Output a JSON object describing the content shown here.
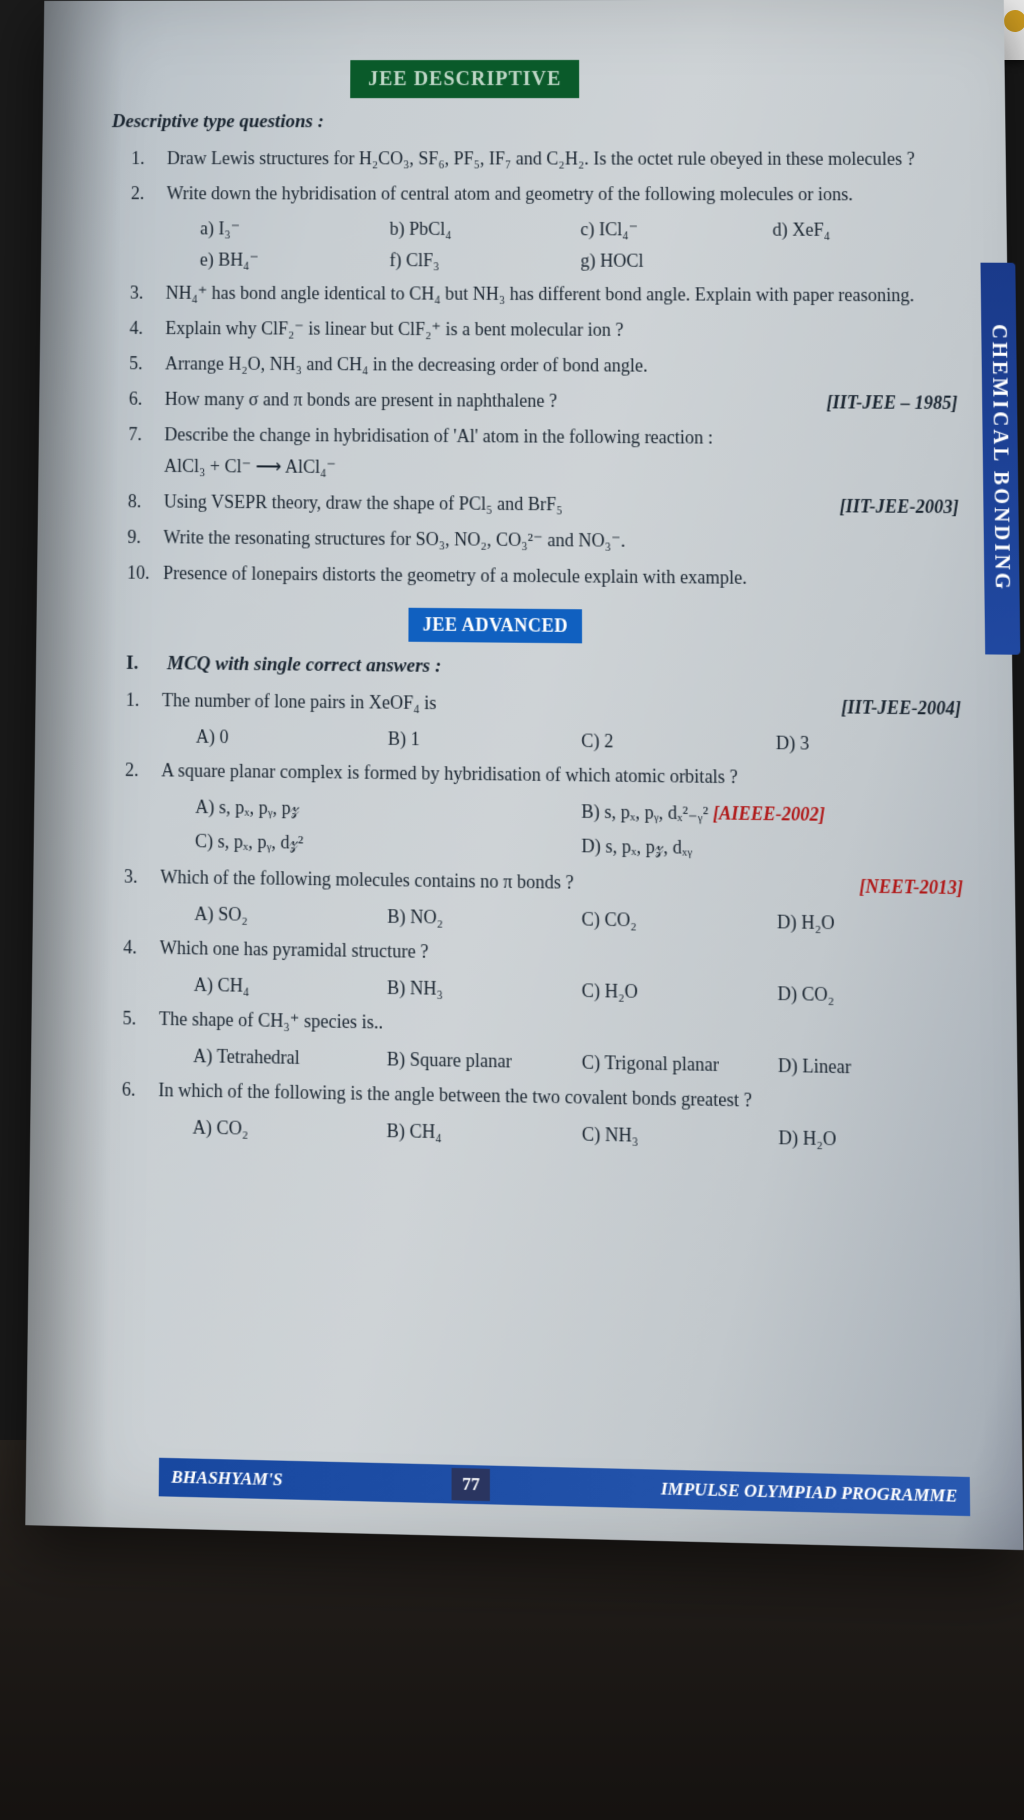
{
  "colors": {
    "badge_green_bg": "#0a5a2a",
    "badge_green_fg": "#c0d8c8",
    "badge_blue_bg": "#1060c0",
    "badge_blue_fg": "#ffffff",
    "footer_bg": "#1848a0",
    "footer_fg": "#ffffff",
    "tag_blue": "#1a2530",
    "tag_red": "#b01818",
    "page_bg": "#c8ced2",
    "text": "#1a2530"
  },
  "typography": {
    "body_fontsize_pt": 14,
    "title_fontsize_pt": 15,
    "font_family": "Georgia serif"
  },
  "header_badge": "JEE DESCRIPTIVE",
  "desc_title": "Descriptive type questions :",
  "side_tab": "CHEMICAL BONDING",
  "descriptive": [
    {
      "n": "1.",
      "text": "Draw Lewis structures for H₂CO₃, SF₆, PF₅, IF₇ and C₂H₂. Is the octet rule obeyed in these molecules ?"
    },
    {
      "n": "2.",
      "text": "Write down the hybridisation of central atom and geometry of the following molecules or ions.",
      "opts": [
        "a)  I₃⁻",
        "b)  PbCl₄",
        "c)  ICl₄⁻",
        "d)  XeF₄",
        "e)  BH₄⁻",
        "f)  ClF₃",
        "g)  HOCl",
        ""
      ]
    },
    {
      "n": "3.",
      "text": "NH₄⁺ has bond angle identical to CH₄ but NH₃ has different bond angle. Explain with paper reasoning."
    },
    {
      "n": "4.",
      "text": "Explain why ClF₂⁻ is linear but ClF₂⁺ is a bent molecular ion ?"
    },
    {
      "n": "5.",
      "text": "Arrange H₂O, NH₃ and CH₄ in the decreasing order of bond angle."
    },
    {
      "n": "6.",
      "text": "How many σ and π bonds are present in naphthalene ?",
      "tag": "[IIT-JEE – 1985]"
    },
    {
      "n": "7.",
      "text": "Describe the change in hybridisation of 'Al' atom in the following reaction :",
      "extra": "AlCl₃ + Cl⁻  ⟶  AlCl₄⁻"
    },
    {
      "n": "8.",
      "text": "Using VSEPR theory, draw the shape of PCl₅ and BrF₅",
      "tag": "[IIT-JEE-2003]"
    },
    {
      "n": "9.",
      "text": "Write the resonating structures for SO₃, NO₂, CO₃²⁻ and NO₃⁻."
    },
    {
      "n": "10.",
      "text": "Presence of lonepairs distorts the geometry of a molecule explain with example."
    }
  ],
  "adv_badge": "JEE ADVANCED",
  "mcq_title": "MCQ with single correct answers :",
  "mcq_roman": "I.",
  "mcq": [
    {
      "n": "1.",
      "q": "The number of lone pairs in XeOF₄ is",
      "tag": "[IIT-JEE-2004]",
      "opts": [
        "A) 0",
        "B) 1",
        "C) 2",
        "D) 3"
      ],
      "cols": 4
    },
    {
      "n": "2.",
      "q": "A square planar complex is formed by hybridisation of which atomic orbitals ?",
      "opts": [
        "A) s, pₓ, pᵧ, p𝓏",
        "B) s, pₓ, pᵧ, dₓ²₋ᵧ²   [AIEEE-2002]",
        "C) s, pₓ, pᵧ, d𝓏²",
        "D) s, pₓ, p𝓏, dₓᵧ"
      ],
      "cols": 2
    },
    {
      "n": "3.",
      "q": "Which of the following molecules contains no π bonds ?",
      "tag": "[NEET-2013]",
      "opts": [
        "A) SO₂",
        "B) NO₂",
        "C) CO₂",
        "D) H₂O"
      ],
      "cols": 4
    },
    {
      "n": "4.",
      "q": "Which one has pyramidal structure ?",
      "opts": [
        "A) CH₄",
        "B) NH₃",
        "C) H₂O",
        "D) CO₂"
      ],
      "cols": 4
    },
    {
      "n": "5.",
      "q": "The shape of CH₃⁺ species is..",
      "opts": [
        "A) Tetrahedral",
        "B) Square planar",
        "C) Trigonal planar",
        "D) Linear"
      ],
      "cols": 4
    },
    {
      "n": "6.",
      "q": "In which of the following is the angle between the two covalent bonds greatest ?",
      "opts": [
        "A) CO₂",
        "B) CH₄",
        "C) NH₃",
        "D) H₂O"
      ],
      "cols": 4
    }
  ],
  "footer": {
    "left": "BHASHYAM'S",
    "page": "77",
    "right": "IMPULSE OLYMPIAD PROGRAMME"
  }
}
